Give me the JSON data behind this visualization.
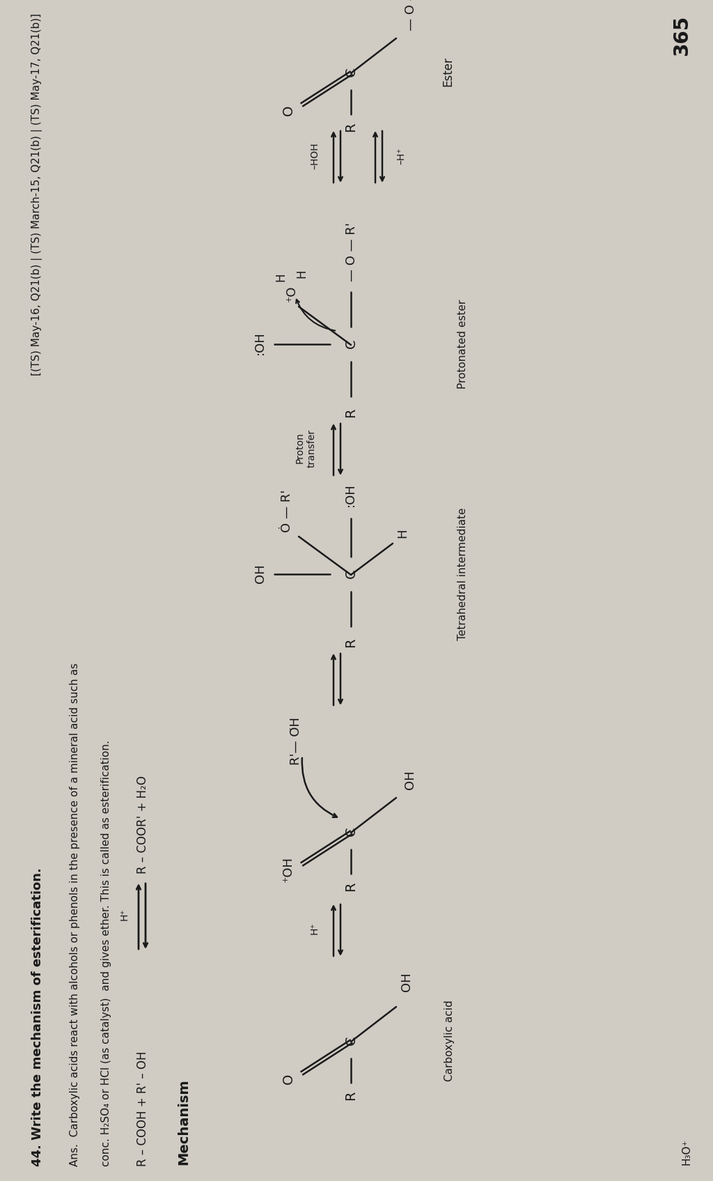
{
  "bg_color": "#d0ccc4",
  "page_number": "365",
  "title_bold": "44. Write the mechanism of esterification.",
  "title_ref": "[(TS) May-16, Q21(b) | (TS) March-15, Q21(b) | (TS) May-17, Q21(b)]",
  "ans_text1": "Ans.  Carboxylic acids react with alcohols or phenols in the presence of a mineral acid such as",
  "ans_text2": "conc. H₂SO₄ or HCl (as catalyst)  and gives ether. This is called as esterification.",
  "eq_left": "R – COOH + R' – OH",
  "eq_right": "R – COOR' + H₂O",
  "eq_catalyst": "H⁺",
  "mech_label": "Mechanism",
  "carb_acid_label": "Carboxylic acid",
  "tetrah_label": "Tetrahedral intermediate",
  "proton_label": "Proton\ntransfer",
  "prot_ester_label": "Protonated ester",
  "ester_label": "Ester",
  "minus_hoh": "–HOH",
  "minus_h": "–H⁺",
  "h3o_label": "H₃O⁺"
}
